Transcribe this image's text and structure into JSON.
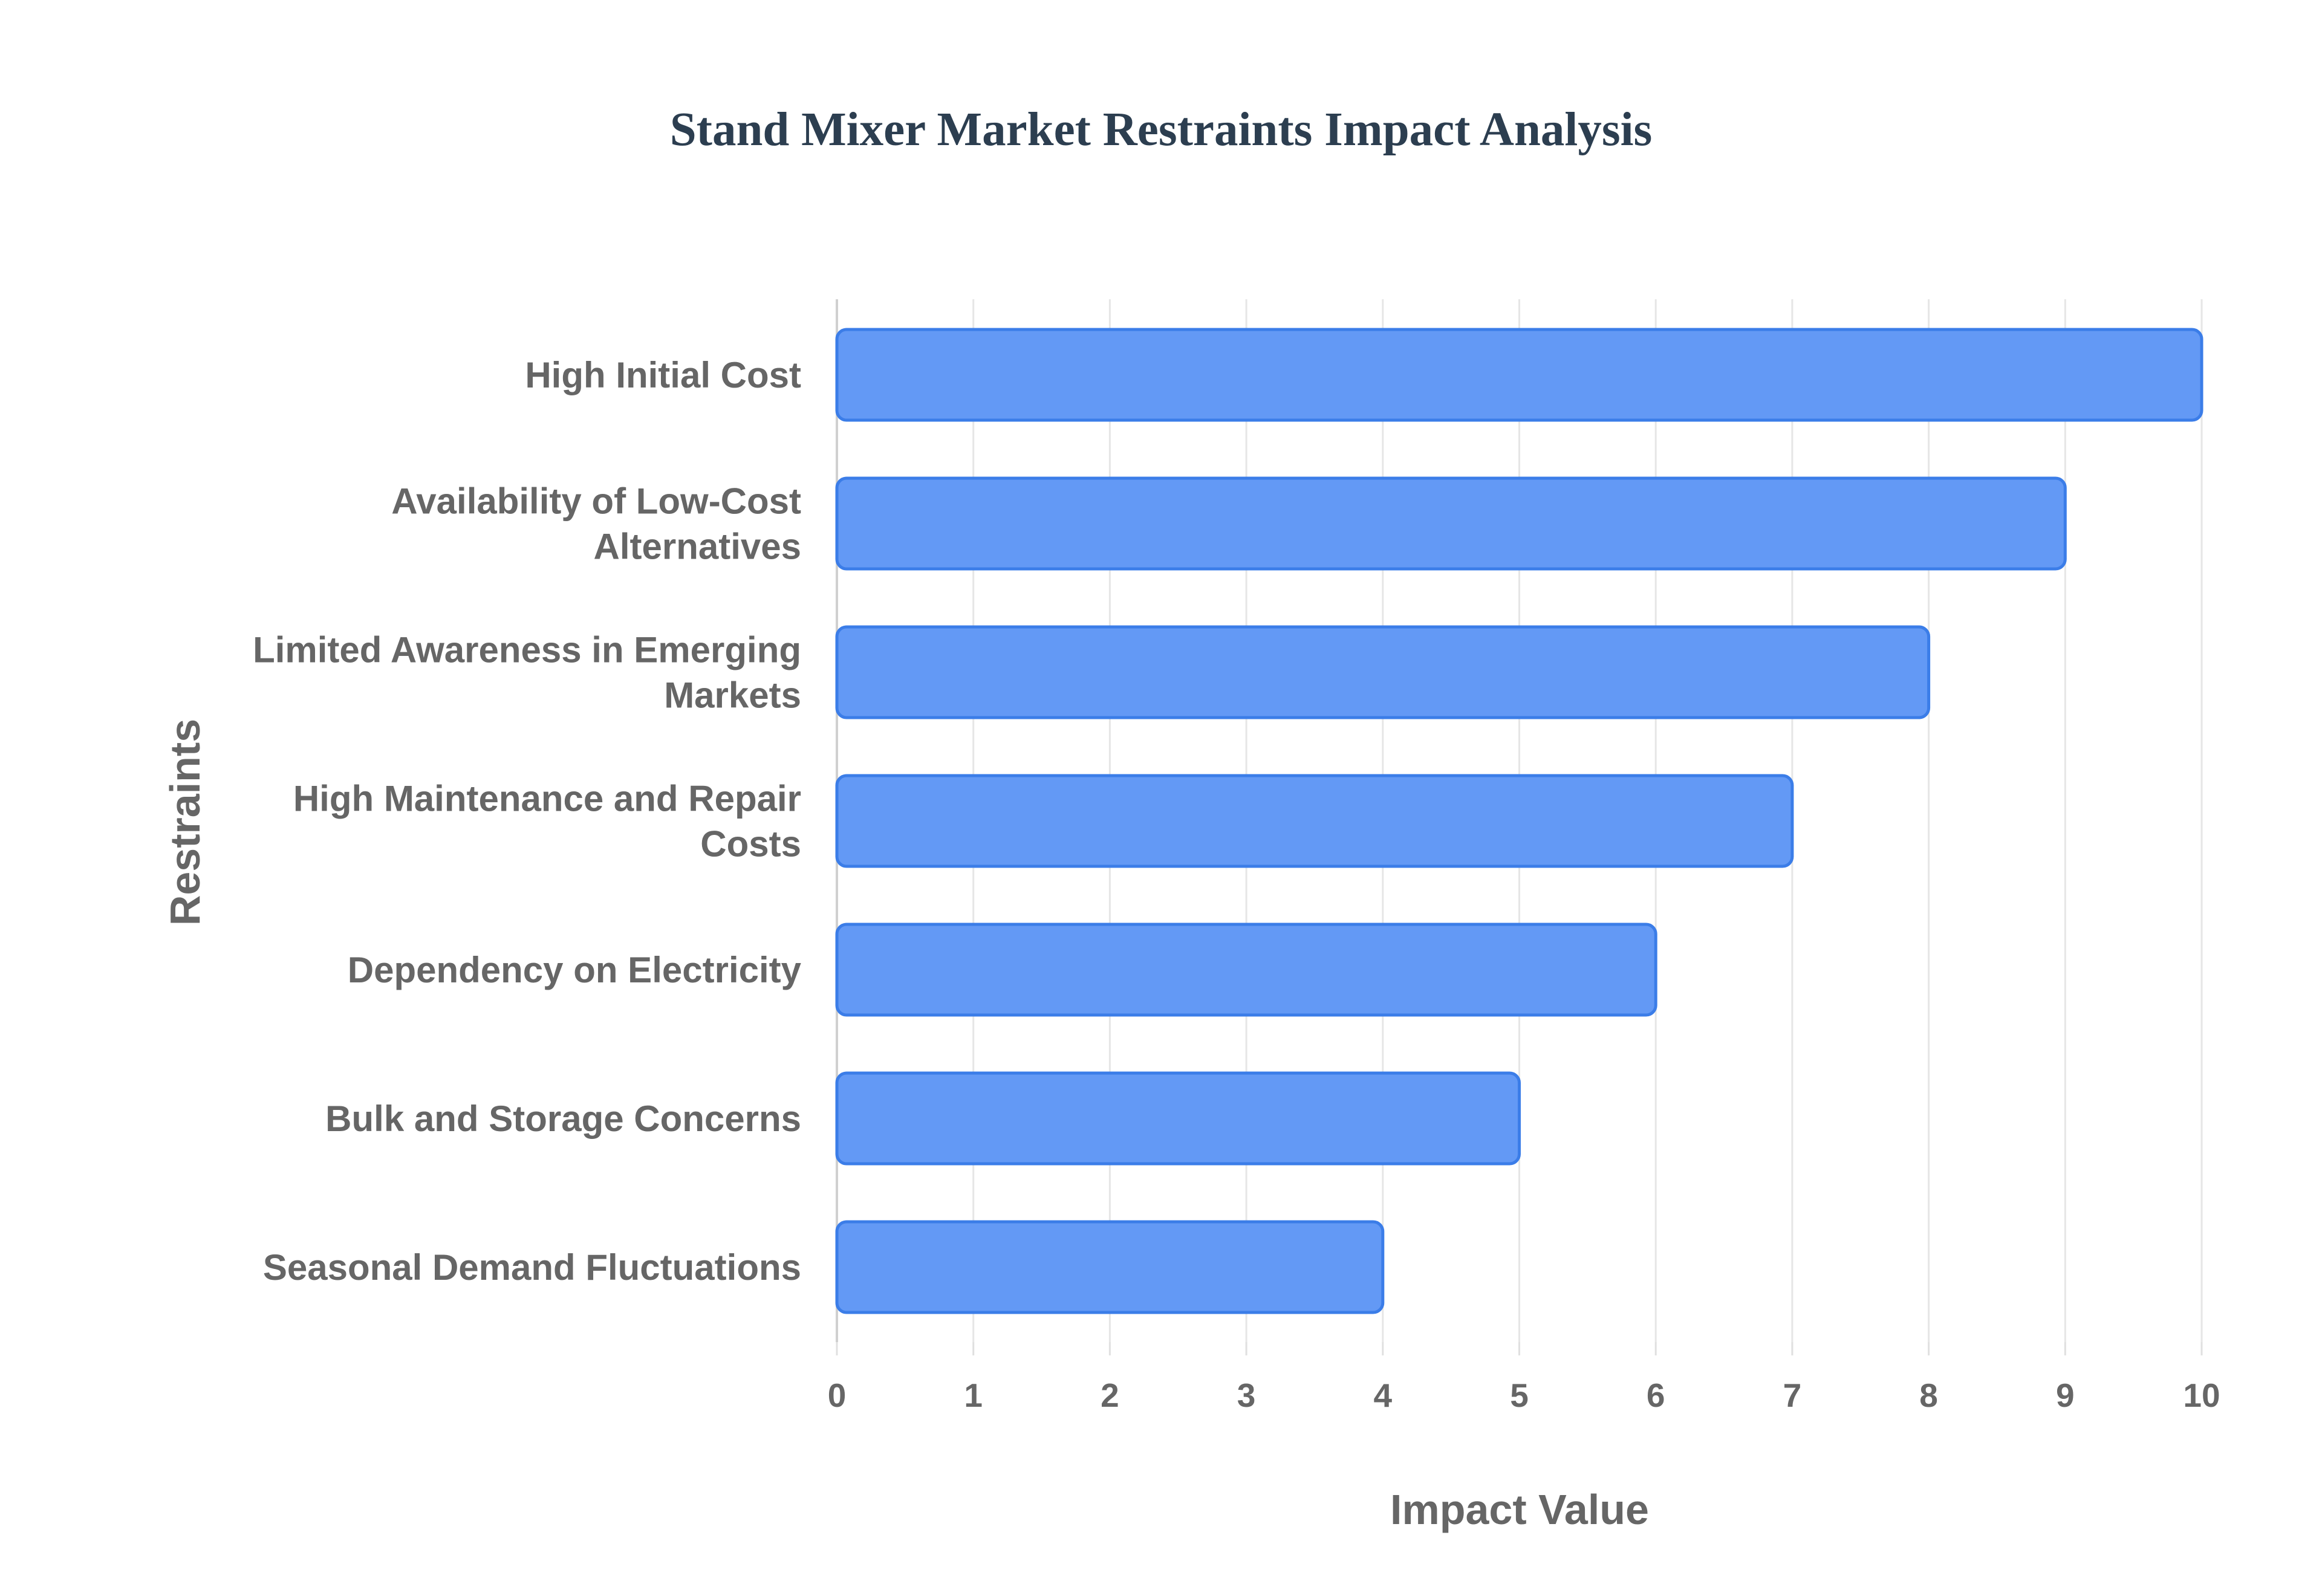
{
  "chart_data": {
    "type": "bar",
    "orientation": "horizontal",
    "title": "Stand Mixer Market Restraints Impact Analysis",
    "xlabel": "Impact Value",
    "ylabel": "Restraints",
    "categories": [
      "High Initial Cost",
      "Availability of Low-Cost Alternatives",
      "Limited Awareness in Emerging Markets",
      "High Maintenance and Repair Costs",
      "Dependency on Electricity",
      "Bulk and Storage Concerns",
      "Seasonal Demand Fluctuations"
    ],
    "category_lines": [
      [
        "High Initial Cost"
      ],
      [
        "Availability of Low-Cost",
        "Alternatives"
      ],
      [
        "Limited Awareness in Emerging",
        "Markets"
      ],
      [
        "High Maintenance and Repair",
        "Costs"
      ],
      [
        "Dependency on Electricity"
      ],
      [
        "Bulk and Storage Concerns"
      ],
      [
        "Seasonal Demand Fluctuations"
      ]
    ],
    "values": [
      10,
      9,
      8,
      7,
      6,
      5,
      4
    ],
    "xlim": [
      0,
      10
    ],
    "xticks": [
      0,
      1,
      2,
      3,
      4,
      5,
      6,
      7,
      8,
      9,
      10
    ],
    "grid": true,
    "legend": "none",
    "bar_color": "#6399f5",
    "bar_edge_color": "#3b7de8"
  }
}
